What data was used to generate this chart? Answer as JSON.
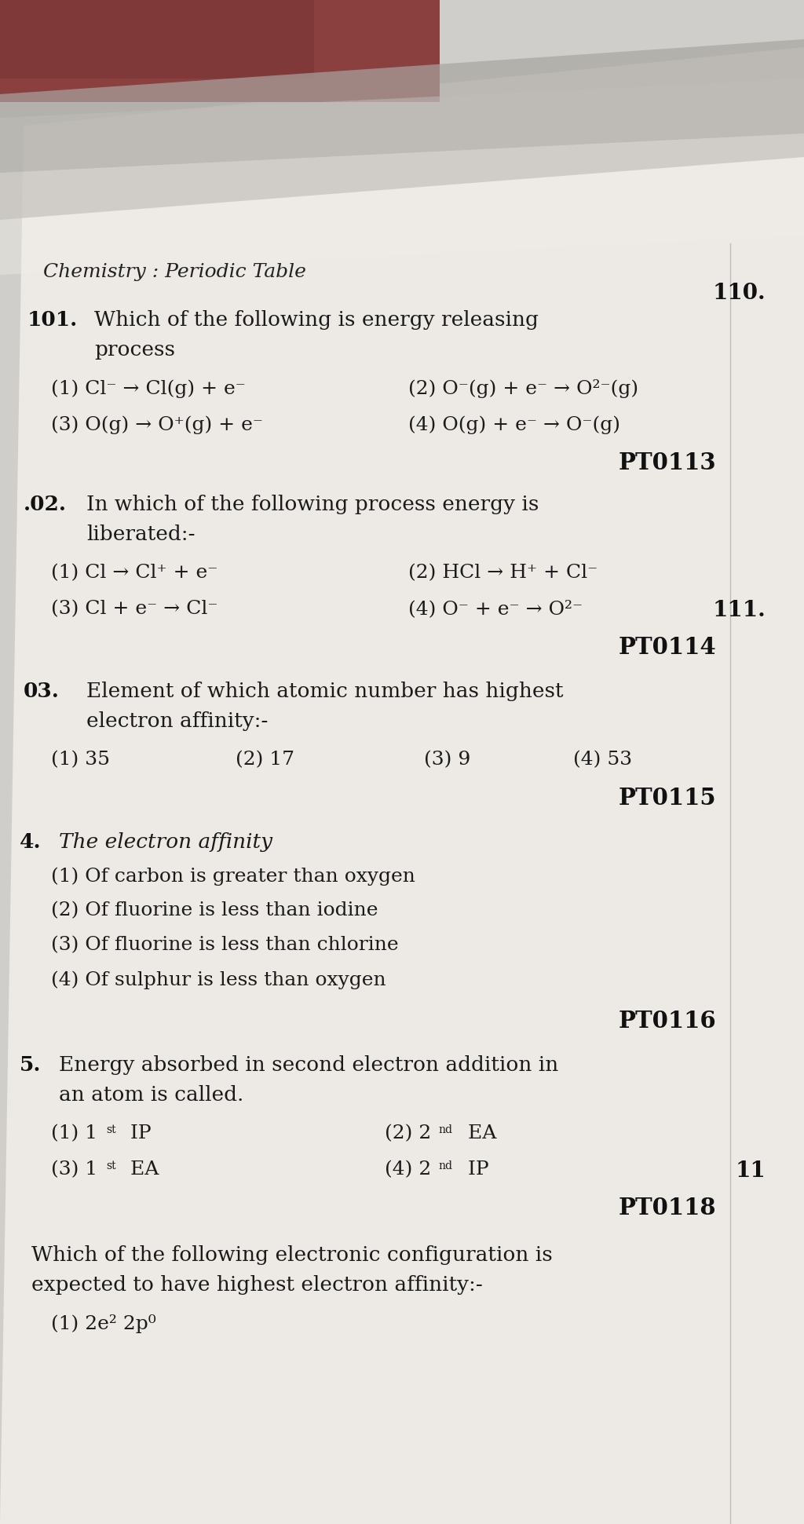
{
  "bg_color": "#c8c5c0",
  "page_bg": "#e8e6e2",
  "title": "Chemistry : Periodic Table",
  "shadow_color": "#9a9898",
  "text_color": "#1a1a1a",
  "bold_code_color": "#111111",
  "q101_num": "101.",
  "q101_text1": "Which of the following is energy releasing",
  "q101_text2": "process",
  "q101_o1": "(1) Cl⁻ → Cl(g) + e⁻",
  "q101_o2": "(2) O⁻(g) + e⁻ → O²⁻(g)",
  "q101_o3": "(3) O(g) → O⁺(g) + e⁻",
  "q101_o4": "(4) O(g) + e⁻ → O⁻(g)",
  "q101_code": "PT0113",
  "q102_num": ".02.",
  "q102_text1": "In which of the following process energy is",
  "q102_text2": "liberated:-",
  "q102_o1": "(1) Cl → Cl⁺ + e⁻",
  "q102_o2": "(2) HCl → H⁺ + Cl⁻",
  "q102_o3": "(3) Cl + e⁻ → Cl⁻",
  "q102_o4": "(4) O⁻ + e⁻ → O²⁻",
  "q102_code": "PT0114",
  "q103_num": "03.",
  "q103_text1": "Element of which atomic number has highest",
  "q103_text2": "electron affinity:-",
  "q103_o1": "(1) 35",
  "q103_o2": "(2) 17",
  "q103_o3": "(3) 9",
  "q103_o4": "(4) 53",
  "q103_code": "PT0115",
  "q104_num": "4.",
  "q104_text": "The electron affinity",
  "q104_o1": "(1) Of carbon is greater than oxygen",
  "q104_o2": "(2) Of fluorine is less than iodine",
  "q104_o3": "(3) Of fluorine is less than chlorine",
  "q104_o4": "(4) Of sulphur is less than oxygen",
  "q104_code": "PT0116",
  "q105_num": "5.",
  "q105_text1": "Energy absorbed in second electron addition in",
  "q105_text2": "an atom is called.",
  "q105_o1a": "(1) 1",
  "q105_o1sup": "st",
  "q105_o1b": " IP",
  "q105_o2a": "(2) 2",
  "q105_o2sup": "nd",
  "q105_o2b": " EA",
  "q105_o3a": "(3) 1",
  "q105_o3sup": "st",
  "q105_o3b": " EA",
  "q105_o4a": "(4) 2",
  "q105_o4sup": "nd",
  "q105_o4b": " IP",
  "q105_code": "PT0118",
  "q106_text1": "Which of the following electronic configuration is",
  "q106_text2": "expected to have highest electron affinity:-",
  "q106_o1": "(1) 2e² 2p⁰",
  "rn1": "110.",
  "rn2": "111.",
  "rn3": "11"
}
